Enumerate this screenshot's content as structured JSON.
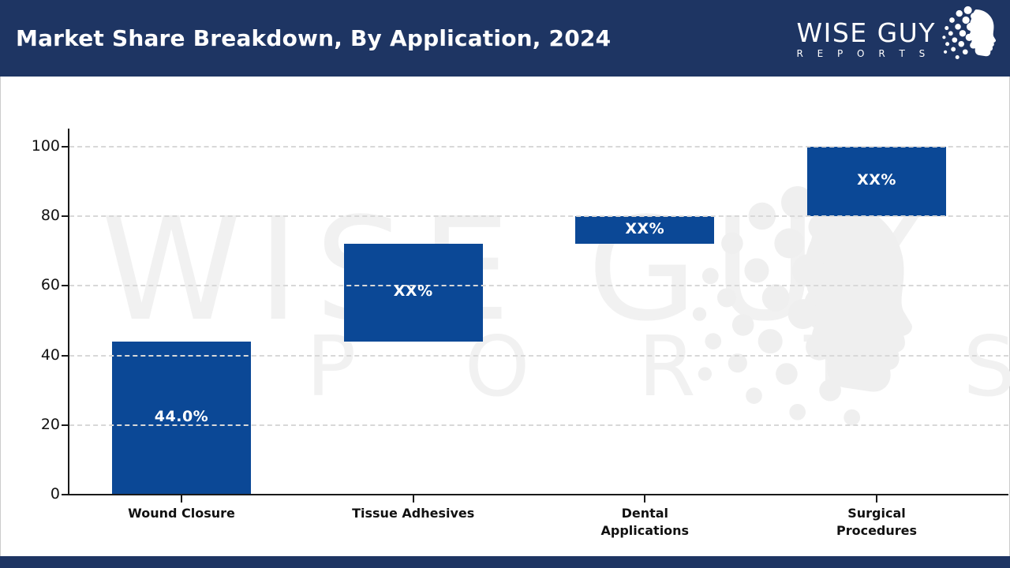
{
  "header": {
    "title": "Market Share Breakdown, By Application, 2024",
    "bg_color": "#1e3563",
    "logo_line1": "WISE GUY",
    "logo_line2": "R E P O R T S"
  },
  "watermark": {
    "line1": "WISE GUY",
    "line2": "P O R T S"
  },
  "chart_data": {
    "type": "bar",
    "variant": "waterfall-breakdown",
    "title": "Market Share Breakdown, By Application, 2024",
    "categories": [
      "Wound Closure",
      "Tissue Adhesives",
      "Dental Applications",
      "Surgical Procedures"
    ],
    "category_label_lines": [
      [
        "Wound Closure"
      ],
      [
        "Tissue Adhesives"
      ],
      [
        "Dental",
        "Applications"
      ],
      [
        "Surgical",
        "Procedures"
      ]
    ],
    "series": [
      {
        "name": "Market share (%)",
        "segments": [
          {
            "category": "Wound Closure",
            "start": 0,
            "end": 44,
            "label": "44.0%"
          },
          {
            "category": "Tissue Adhesives",
            "start": 44,
            "end": 72,
            "label": "XX%"
          },
          {
            "category": "Dental Applications",
            "start": 72,
            "end": 80,
            "label": "XX%"
          },
          {
            "category": "Surgical Procedures",
            "start": 80,
            "end": 100,
            "label": "XX%"
          }
        ]
      }
    ],
    "y_ticks": [
      0,
      20,
      40,
      60,
      80,
      100
    ],
    "ylim": [
      0,
      105
    ],
    "xlabel": "",
    "ylabel": "",
    "bar_color": "#0b4896",
    "bar_label_color": "#ffffff",
    "grid": {
      "horizontal": true,
      "style": "dashed",
      "color": "#d8d8d8",
      "on_top": true
    },
    "legend": null
  }
}
